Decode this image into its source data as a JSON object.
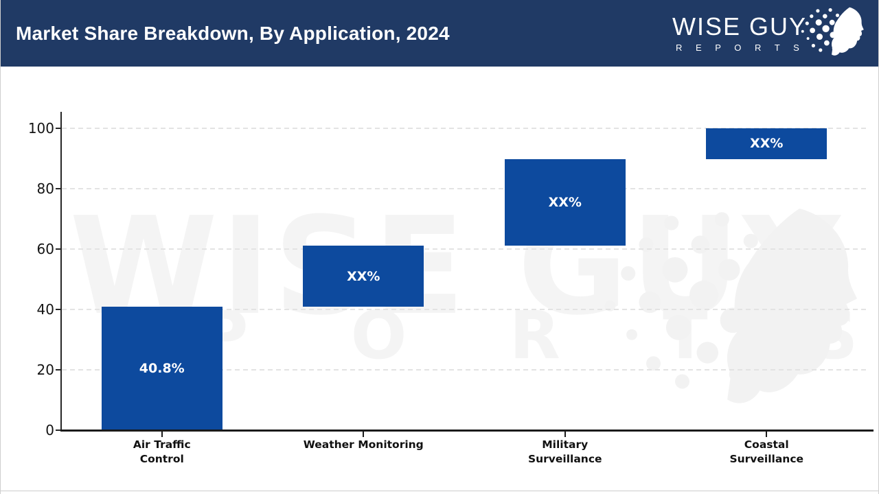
{
  "header": {
    "title": "Market Share Breakdown, By Application, 2024",
    "logo": {
      "name_top": "WISE GUY",
      "name_bottom": "R E P O R T S"
    }
  },
  "watermark": {
    "line1": "WISE GUY",
    "line2": "P O R T S"
  },
  "colors": {
    "header_bg": "#203a65",
    "bar": "#0d4a9e",
    "grid": "#e3e3e3",
    "axis": "#1a1a1a",
    "bar_label": "#ffffff",
    "watermark": "#f2f2f2"
  },
  "chart_data": {
    "type": "bar",
    "subtype": "waterfall",
    "title": "Market Share Breakdown, By Application, 2024",
    "categories": [
      [
        "Air Traffic",
        "Control"
      ],
      [
        "Weather Monitoring"
      ],
      [
        "Military",
        "Surveillance"
      ],
      [
        "Coastal",
        "Surveillance"
      ]
    ],
    "segments": [
      {
        "category": "Air Traffic Control",
        "start": 0,
        "end": 40.8,
        "label": "40.8%"
      },
      {
        "category": "Weather Monitoring",
        "start": 40.8,
        "end": 61.2,
        "label": "XX%"
      },
      {
        "category": "Military Surveillance",
        "start": 61.2,
        "end": 89.8,
        "label": "XX%"
      },
      {
        "category": "Coastal Surveillance",
        "start": 89.8,
        "end": 100,
        "label": "XX%"
      }
    ],
    "ylim": [
      0,
      100
    ],
    "yticks": [
      0,
      20,
      40,
      60,
      80,
      100
    ],
    "grid": true,
    "legend_position": "none",
    "xlabel": "",
    "ylabel": ""
  }
}
